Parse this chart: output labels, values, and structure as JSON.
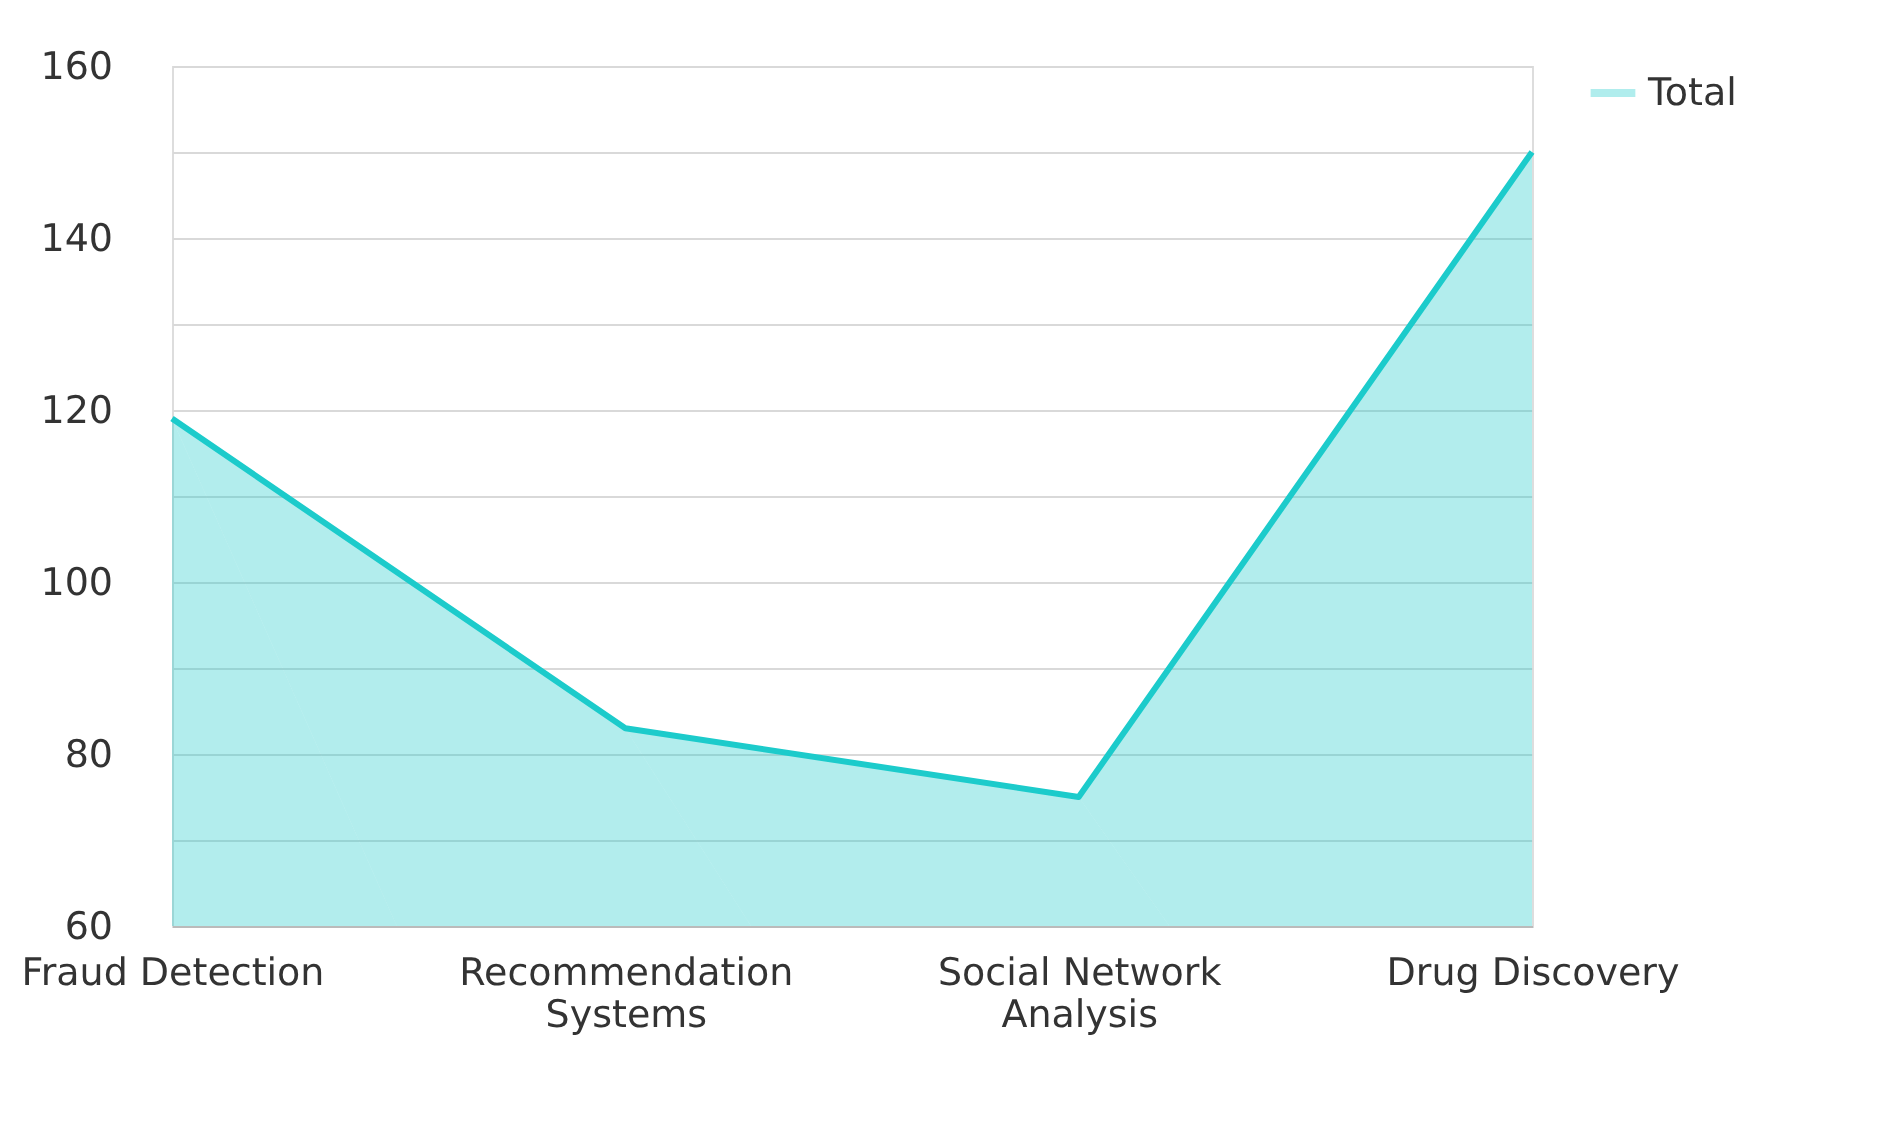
{
  "chart_data": {
    "type": "area",
    "categories": [
      "Fraud Detection",
      "Recommendation Systems",
      "Social Network Analysis",
      "Drug Discovery"
    ],
    "series": [
      {
        "name": "Total",
        "color": "#1ccbcb",
        "values": [
          119,
          83,
          75,
          150
        ]
      }
    ],
    "ylim": [
      60,
      160
    ],
    "yticks": [
      60,
      {
        "value": 70,
        "label": null
      },
      80,
      {
        "value": 90,
        "label": null
      },
      100,
      {
        "value": 110,
        "label": null
      },
      120,
      {
        "value": 130,
        "label": null
      },
      140,
      {
        "value": 150,
        "label": null
      },
      160
    ],
    "grid": "y",
    "legend": "top right"
  }
}
